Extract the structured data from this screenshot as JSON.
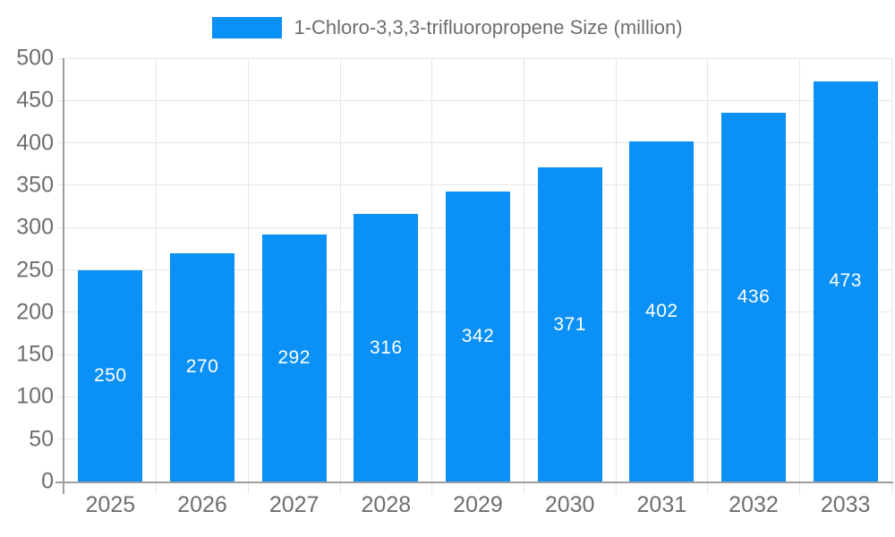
{
  "chart_data": {
    "type": "bar",
    "title": "1-Chloro-3,3,3-trifluoropropene Size (million)",
    "legend": {
      "position": "top",
      "label": "1-Chloro-3,3,3-trifluoropropene Size (million)"
    },
    "categories": [
      "2025",
      "2026",
      "2027",
      "2028",
      "2029",
      "2030",
      "2031",
      "2032",
      "2033"
    ],
    "series": [
      {
        "name": "1-Chloro-3,3,3-trifluoropropene Size (million)",
        "values": [
          250,
          270,
          292,
          316,
          342,
          371,
          402,
          436,
          473
        ]
      }
    ],
    "bar_value_labels": [
      "250",
      "270",
      "292",
      "316",
      "342",
      "371",
      "402",
      "436",
      "473"
    ],
    "xlabel": "",
    "ylabel": "",
    "ylim": [
      0,
      500
    ],
    "ytick_step": 50,
    "yticks": [
      "0",
      "50",
      "100",
      "150",
      "200",
      "250",
      "300",
      "350",
      "400",
      "450",
      "500"
    ],
    "grid": "both",
    "colors": {
      "bar": "#0b90f5",
      "grid": "#e6e6e6",
      "axis": "#9e9e9e",
      "tick": "#d2d2d2",
      "label": "#6e6e6e",
      "value_label": "#ffffff",
      "background": "#ffffff"
    }
  }
}
